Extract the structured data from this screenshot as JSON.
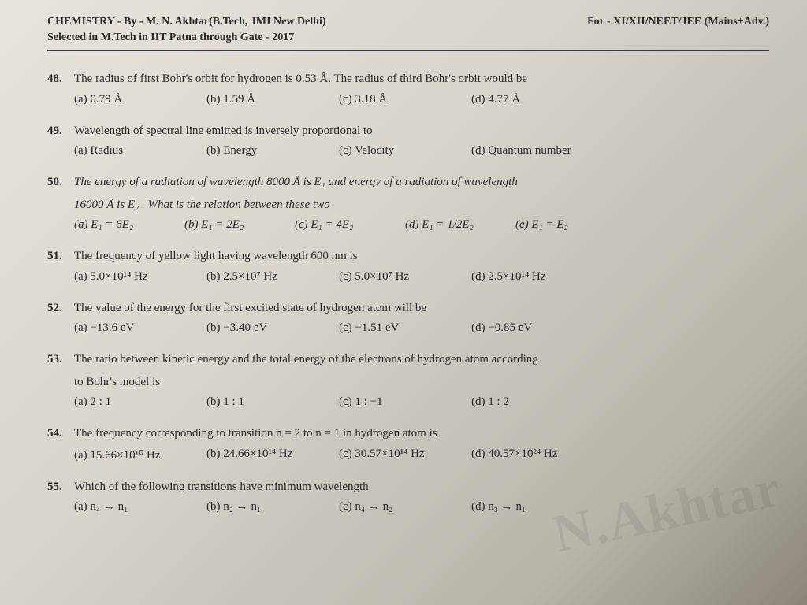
{
  "header": {
    "line1_left": "CHEMISTRY - By - M. N. Akhtar(B.Tech, JMI New Delhi)",
    "line2_left": "Selected in M.Tech in IIT Patna through Gate - 2017",
    "line1_right": "For - XI/XII/NEET/JEE (Mains+Adv.)"
  },
  "questions": [
    {
      "num": "48.",
      "text": "The radius of first Bohr's orbit for hydrogen is 0.53 Å. The radius of third Bohr's orbit would be",
      "options": [
        "(a) 0.79 Å",
        "(b) 1.59 Å",
        "(c) 3.18 Å",
        "(d) 4.77 Å"
      ]
    },
    {
      "num": "49.",
      "text": "Wavelength of spectral line emitted is inversely proportional to",
      "options": [
        "(a) Radius",
        "(b) Energy",
        "(c) Velocity",
        "(d) Quantum number"
      ]
    },
    {
      "num": "50.",
      "text": "The energy of a radiation of wavelength 8000 Å is E₁ and energy of a radiation of wavelength",
      "cont": "16000 Å is E₂ . What is the relation between these two",
      "options": [
        "(a) E₁ = 6E₂",
        "(b) E₁ = 2E₂",
        "(c) E₁ = 4E₂",
        "(d) E₁ = 1/2E₂",
        "(e) E₁ = E₂"
      ]
    },
    {
      "num": "51.",
      "text": "The frequency of yellow light having wavelength 600 nm is",
      "options": [
        "(a) 5.0×10¹⁴ Hz",
        "(b) 2.5×10⁷ Hz",
        "(c) 5.0×10⁷ Hz",
        "(d) 2.5×10¹⁴ Hz"
      ]
    },
    {
      "num": "52.",
      "text": "The value of the energy for the first excited state of hydrogen atom will be",
      "options": [
        "(a) −13.6 eV",
        "(b) −3.40 eV",
        "(c) −1.51 eV",
        "(d) −0.85 eV"
      ]
    },
    {
      "num": "53.",
      "text": "The ratio between kinetic energy and the total energy of the electrons of hydrogen atom according",
      "cont": "to Bohr's model is",
      "options": [
        "(a) 2 : 1",
        "(b) 1 : 1",
        "(c) 1 : −1",
        "(d) 1 : 2"
      ]
    },
    {
      "num": "54.",
      "text": "The frequency corresponding to transition n = 2 to n = 1 in hydrogen atom is",
      "options": [
        "(a) 15.66×10¹⁰ Hz",
        "(b) 24.66×10¹⁴ Hz",
        "(c) 30.57×10¹⁴ Hz",
        "(d) 40.57×10²⁴ Hz"
      ]
    },
    {
      "num": "55.",
      "text": "Which of the following transitions have minimum wavelength",
      "options": [
        "(a) n₄ → n₁",
        "(b) n₂ → n₁",
        "(c) n₄ → n₂",
        "(d) n₃ → n₁"
      ]
    }
  ],
  "watermark": "N.Akhtar"
}
